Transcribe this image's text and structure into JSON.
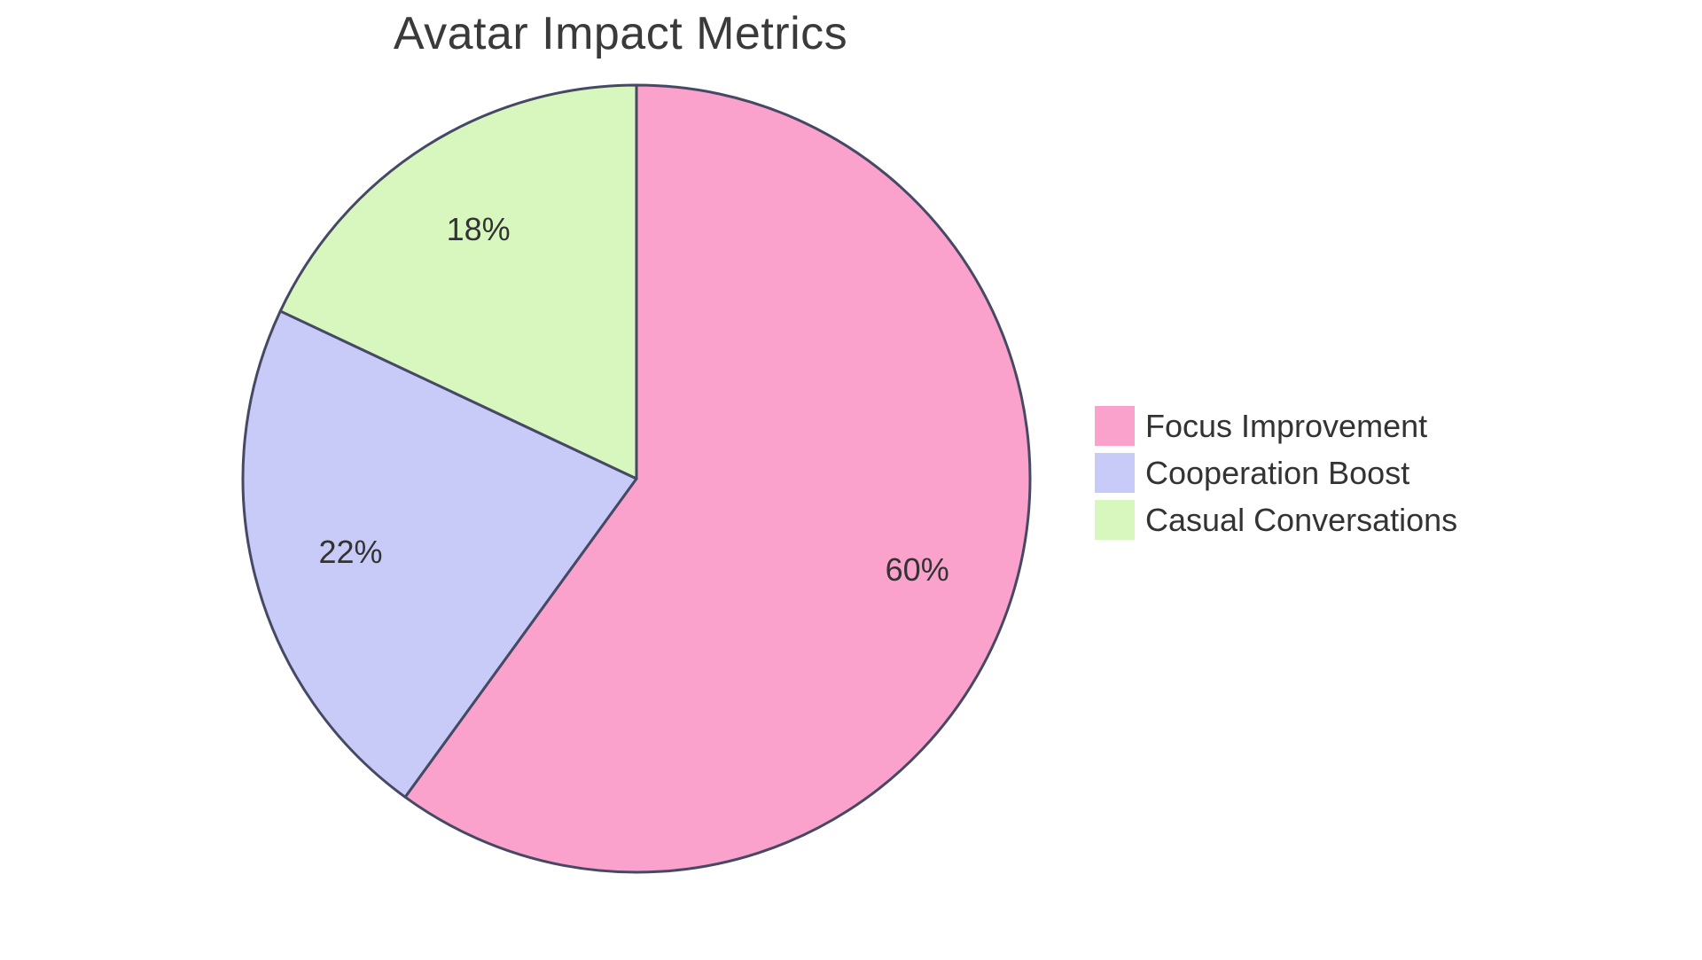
{
  "title": "Avatar Impact Metrics",
  "chart_data": {
    "type": "pie",
    "title": "Avatar Impact Metrics",
    "start_angle_deg": 0,
    "direction": "clockwise",
    "legend_position": "right",
    "stroke_color": "#464964",
    "label_color": "#333333",
    "background_color": "#ffffff",
    "slices": [
      {
        "label": "Focus Improvement",
        "value": 60,
        "display": "60%",
        "color": "#FAA2CC"
      },
      {
        "label": "Cooperation Boost",
        "value": 22,
        "display": "22%",
        "color": "#C8CAF8"
      },
      {
        "label": "Casual Conversations",
        "value": 18,
        "display": "18%",
        "color": "#D8F7BE"
      }
    ]
  }
}
